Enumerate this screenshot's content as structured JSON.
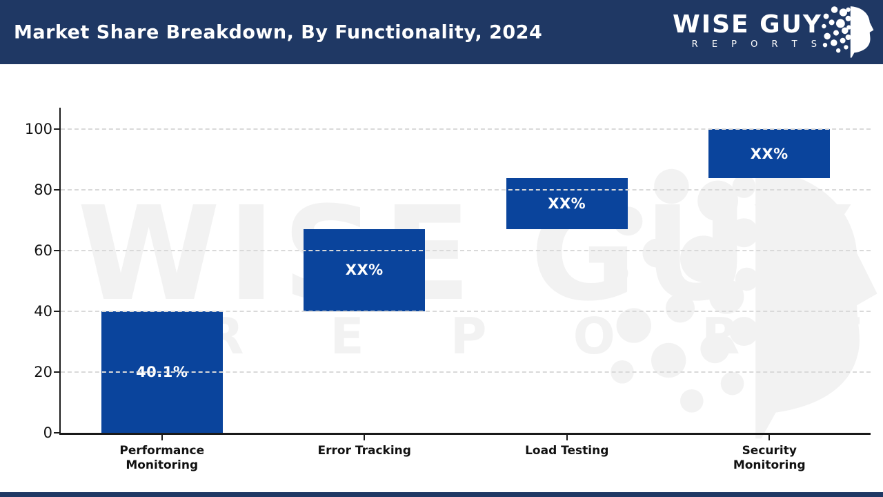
{
  "header": {
    "title": "Market Share Breakdown, By Functionality, 2024",
    "logo": {
      "line1": "WISE GUY",
      "line2": "R E P O R T S"
    }
  },
  "watermark": {
    "line1": "WISE GUY",
    "line2": "R E P O R T S"
  },
  "chart_data": {
    "type": "bar",
    "subtype": "waterfall",
    "title": "Market Share Breakdown, By Functionality, 2024",
    "xlabel": "",
    "ylabel": "",
    "categories": [
      "Performance Monitoring",
      "Error Tracking",
      "Load Testing",
      "Security Monitoring"
    ],
    "segments": [
      {
        "category": "Performance Monitoring",
        "start": 0,
        "end": 40.1,
        "label": "40.1%"
      },
      {
        "category": "Error Tracking",
        "start": 40.1,
        "end": 67,
        "label": "XX%"
      },
      {
        "category": "Load Testing",
        "start": 67,
        "end": 83.8,
        "label": "XX%"
      },
      {
        "category": "Security Monitoring",
        "start": 83.8,
        "end": 100,
        "label": "XX%"
      }
    ],
    "yticks": [
      0,
      20,
      40,
      60,
      80,
      100
    ],
    "ylim": [
      0,
      107
    ],
    "grid": "horizontal-dashed-above-bars",
    "legend": "none",
    "bar_color": "#0A449C"
  },
  "colors": {
    "header_bg": "#1F3864",
    "footer_bg": "#1F3864",
    "bar": "#0A449C",
    "gridline": "#D9D9D9",
    "axis": "#1A1A1A",
    "bar_label": "#FFFFFF",
    "watermark": "#F2F2F2",
    "background": "#FFFFFF"
  }
}
